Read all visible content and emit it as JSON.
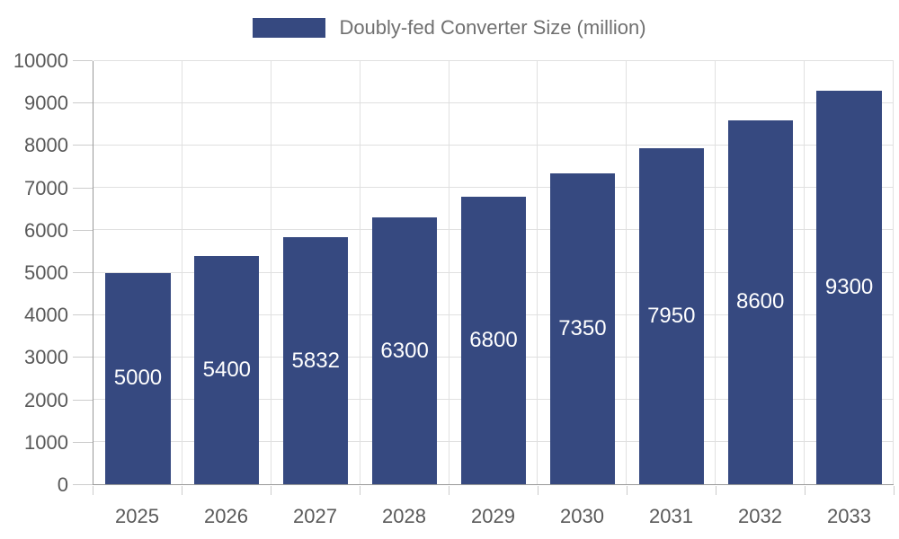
{
  "chart_data": {
    "type": "bar",
    "title": "Doubly-fed Converter Size (million)",
    "legend": "Doubly-fed Converter Size (million)",
    "categories": [
      "2025",
      "2026",
      "2027",
      "2028",
      "2029",
      "2030",
      "2031",
      "2032",
      "2033"
    ],
    "values": [
      5000,
      5400,
      5832,
      6300,
      6800,
      7350,
      7950,
      8600,
      9300
    ],
    "xlabel": "",
    "ylabel": "",
    "ylim": [
      0,
      10000
    ],
    "ytick_step": 1000,
    "ytick_labels": [
      "0",
      "1000",
      "2000",
      "3000",
      "4000",
      "5000",
      "6000",
      "7000",
      "8000",
      "9000",
      "10000"
    ],
    "grid": true,
    "legend_position": "top-center",
    "value_labels": "inside-center-white",
    "colors": {
      "bar": "#364980",
      "grid_line": "#e0e0e0",
      "tick_line": "#cccccc",
      "axis_line": "#999999",
      "tick_label": "#595959",
      "legend_text": "#707070",
      "value_label": "#ffffff",
      "background": "#ffffff"
    }
  }
}
